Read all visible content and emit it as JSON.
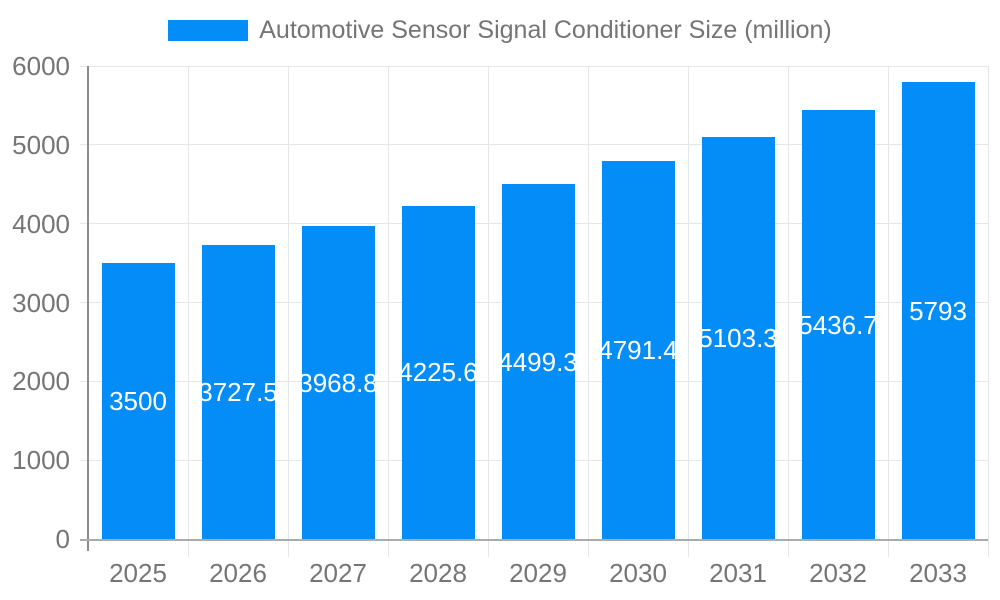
{
  "chart_data": {
    "type": "bar",
    "title": "Automotive Sensor Signal Conditioner Size (million)",
    "categories": [
      "2025",
      "2026",
      "2027",
      "2028",
      "2029",
      "2030",
      "2031",
      "2032",
      "2033"
    ],
    "values": [
      3500,
      3727.5,
      3968.8,
      4225.6,
      4499.3,
      4791.4,
      5103.3,
      5436.7,
      5793
    ],
    "data_labels": [
      "3500",
      "3727.5",
      "3968.8",
      "4225.6",
      "4499.3",
      "4791.4",
      "5103.3",
      "5436.7",
      "5793"
    ],
    "xlabel": "",
    "ylabel": "",
    "ylim": [
      0,
      6000
    ],
    "y_ticks": [
      0,
      1000,
      2000,
      3000,
      4000,
      5000,
      6000
    ],
    "grid": true,
    "legend_position": "top",
    "bar_color": "#058DF7",
    "data_label_color": "#ffffff",
    "axis_text_color": "#757575",
    "title_color": "#757575",
    "gridline_color": "#e6e6e6",
    "y_axis_line_color": "#8c8c8c",
    "x_axis_line_color": "#ababab"
  }
}
